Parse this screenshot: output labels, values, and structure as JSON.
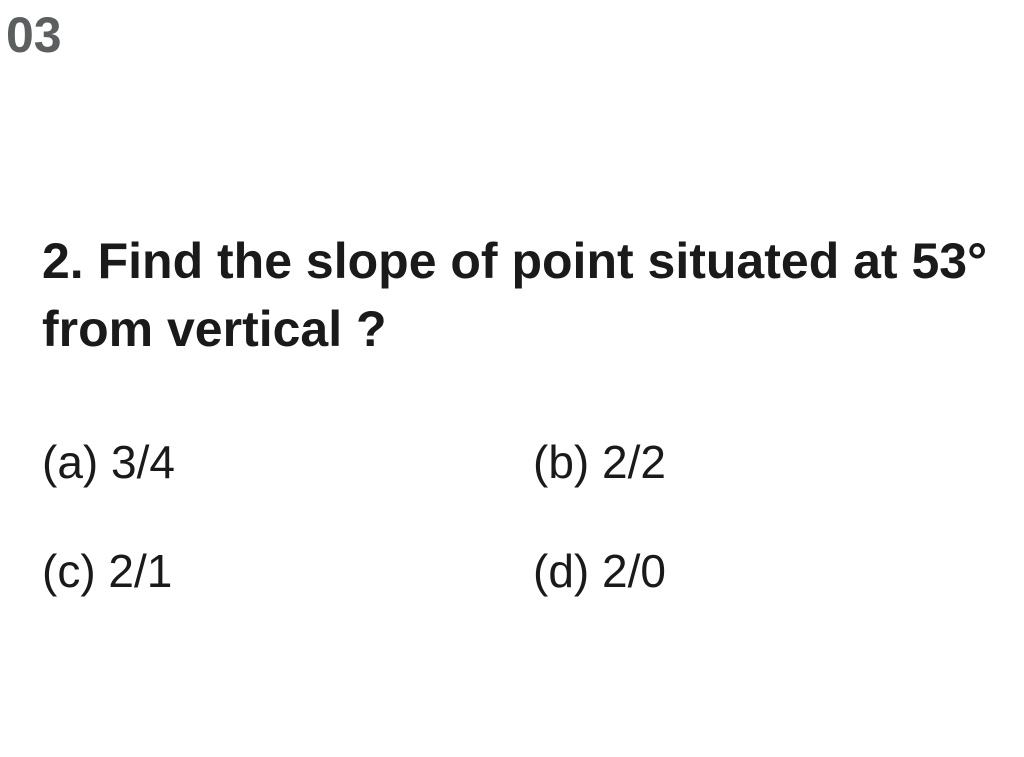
{
  "page": {
    "number": "03",
    "background_color": "#ffffff",
    "text_color": "#1a1a1a",
    "page_number_color": "#5b5f60"
  },
  "question": {
    "number": "2.",
    "text": "Find the slope of point situated at 53°",
    "line2": "from vertical ?",
    "font_size": 50,
    "font_weight": 700
  },
  "options": {
    "a": {
      "label": "(a)",
      "value": "3/4"
    },
    "b": {
      "label": "(b)",
      "value": "2/2"
    },
    "c": {
      "label": "(c)",
      "value": "2/1"
    },
    "d": {
      "label": "(d)",
      "value": "2/0"
    },
    "font_size": 46
  }
}
